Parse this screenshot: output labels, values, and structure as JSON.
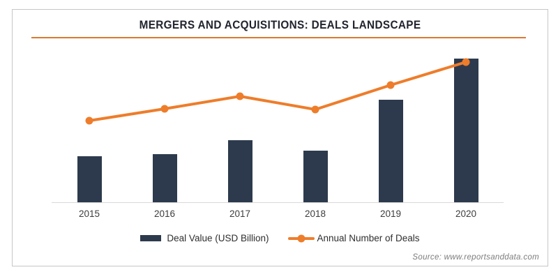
{
  "chart_data": {
    "type": "bar+line",
    "title": "MERGERS AND ACQUISITIONS: DEALS LANDSCAPE",
    "categories": [
      "2015",
      "2016",
      "2017",
      "2018",
      "2019",
      "2020"
    ],
    "series": [
      {
        "name": "Deal Value (USD Billion)",
        "type": "bar",
        "color": "#2d3a4d",
        "values": [
          66,
          69,
          89,
          74,
          147,
          206
        ]
      },
      {
        "name": "Annual Number of Deals",
        "type": "line",
        "color": "#ee7d2b",
        "values": [
          117,
          134,
          152,
          133,
          168,
          201
        ]
      }
    ],
    "xlabel": "",
    "ylabel": "",
    "y_axis_note": "y-axis unlabeled in source image; values are relative units estimated from plot (plot height = 216)",
    "ylim": [
      0,
      216
    ],
    "grid": false,
    "legend_position": "bottom"
  },
  "footer": {
    "source": "Source: www.reportsanddata.com"
  },
  "colors": {
    "bar_navy": "#2d3a4d",
    "line_orange": "#ee7d2b",
    "title_text": "#21242e",
    "accent_rule_orange": "#dd7732",
    "axis_line": "#d9d9d9",
    "tick_text": "#3d3d3d",
    "legend_text": "#2e2e2e",
    "source_text": "#7c7c7c",
    "frame_border": "#c6c6c6"
  }
}
